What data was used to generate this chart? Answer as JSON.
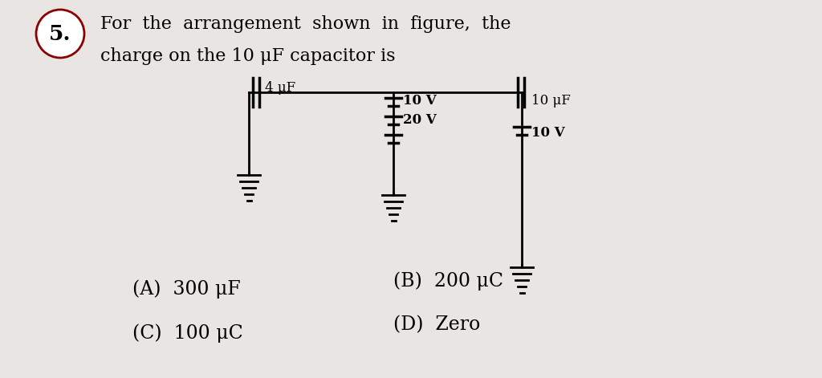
{
  "bg_color": "#e8e5e2",
  "title_number": "5.",
  "circle_color": "#8B0000",
  "question_line1": "For  the  arrangement  shown  in  figure,  the",
  "question_line2": "charge on the 10 μF capacitor is",
  "options": [
    "(A)  300 μF",
    "(B)  200 μC",
    "(C)  100 μC",
    "(D)  Zero"
  ],
  "cap1_label": "4 μF",
  "bat1_label": "10 V",
  "bat2_label": "20 V",
  "cap3_label": "10 μF",
  "bat3_label": "10 V",
  "font_size_question": 16,
  "font_size_options": 17,
  "font_size_number": 19,
  "font_size_circuit": 12
}
